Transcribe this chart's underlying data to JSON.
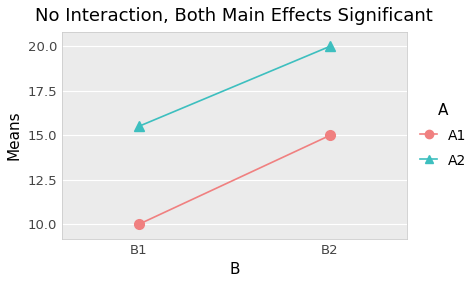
{
  "title": "No Interaction, Both Main Effects Significant",
  "xlabel": "B",
  "ylabel": "Means",
  "x_labels": [
    "B1",
    "B2"
  ],
  "x_positions": [
    1,
    2
  ],
  "series": [
    {
      "name": "A1",
      "values": [
        10,
        15
      ],
      "color": "#F08080",
      "marker": "o",
      "linestyle": "-"
    },
    {
      "name": "A2",
      "values": [
        15.5,
        20
      ],
      "color": "#3DBFBF",
      "marker": "^",
      "linestyle": "-"
    }
  ],
  "ylim": [
    9.2,
    20.8
  ],
  "yticks": [
    10.0,
    12.5,
    15.0,
    17.5,
    20.0
  ],
  "xlim": [
    0.6,
    2.4
  ],
  "legend_title": "A",
  "background_color": "#ffffff",
  "panel_color": "#ebebeb",
  "grid_color": "#ffffff",
  "title_fontsize": 13,
  "axis_label_fontsize": 11,
  "tick_fontsize": 9.5,
  "legend_fontsize": 10,
  "legend_title_fontsize": 11
}
